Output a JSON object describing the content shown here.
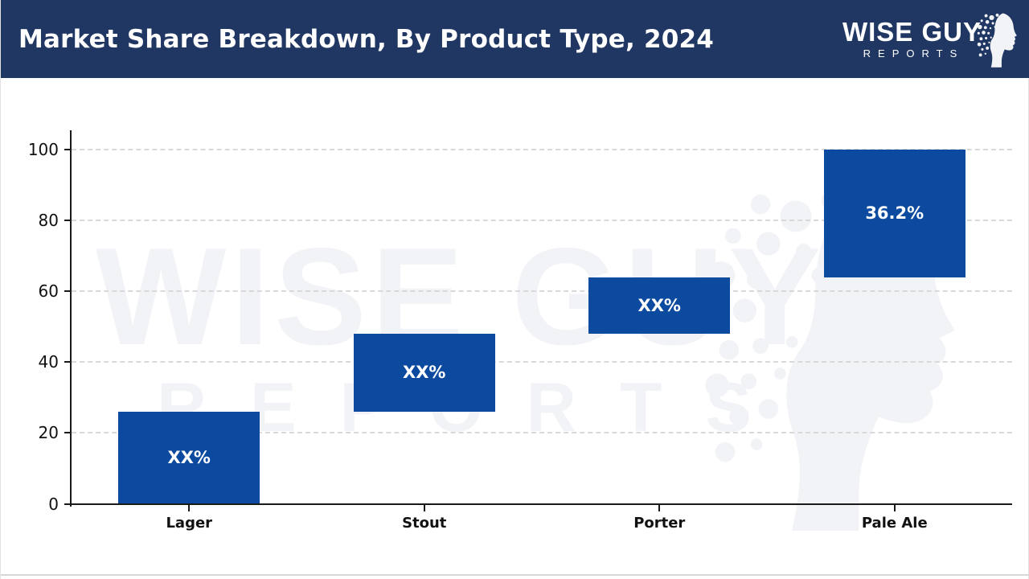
{
  "header": {
    "title": "Market Share Breakdown, By Product Type, 2024",
    "bg_color": "#213763",
    "logo": {
      "wordmark": "WISE GUY",
      "subtitle": "REPORTS"
    }
  },
  "watermark": {
    "line1": "WISE GUY",
    "line2": "REPORTS"
  },
  "chart_data": {
    "type": "bar",
    "subtype": "waterfall",
    "title": "Market Share Breakdown, By Product Type, 2024",
    "categories": [
      "Lager",
      "Stout",
      "Porter",
      "Pale Ale"
    ],
    "segments": [
      {
        "category": "Lager",
        "start": 0,
        "end": 26,
        "value": 26,
        "label": "XX%"
      },
      {
        "category": "Stout",
        "start": 26,
        "end": 48,
        "value": 22,
        "label": "XX%"
      },
      {
        "category": "Porter",
        "start": 48,
        "end": 63.8,
        "value": 15.8,
        "label": "XX%"
      },
      {
        "category": "Pale Ale",
        "start": 63.8,
        "end": 100,
        "value": 36.2,
        "label": "36.2%"
      }
    ],
    "xlabel": "",
    "ylabel": "",
    "ylim": [
      0,
      100
    ],
    "yticks": [
      0,
      20,
      40,
      60,
      80,
      100
    ],
    "grid": "horizontal-dashed",
    "legend": "none",
    "bar_color": "#0b4a9e",
    "bar_label_color": "#ffffff",
    "grid_color": "#d9d9d9",
    "axis_color": "#1a1a1a",
    "watermark_color": "#f2f3f6"
  }
}
